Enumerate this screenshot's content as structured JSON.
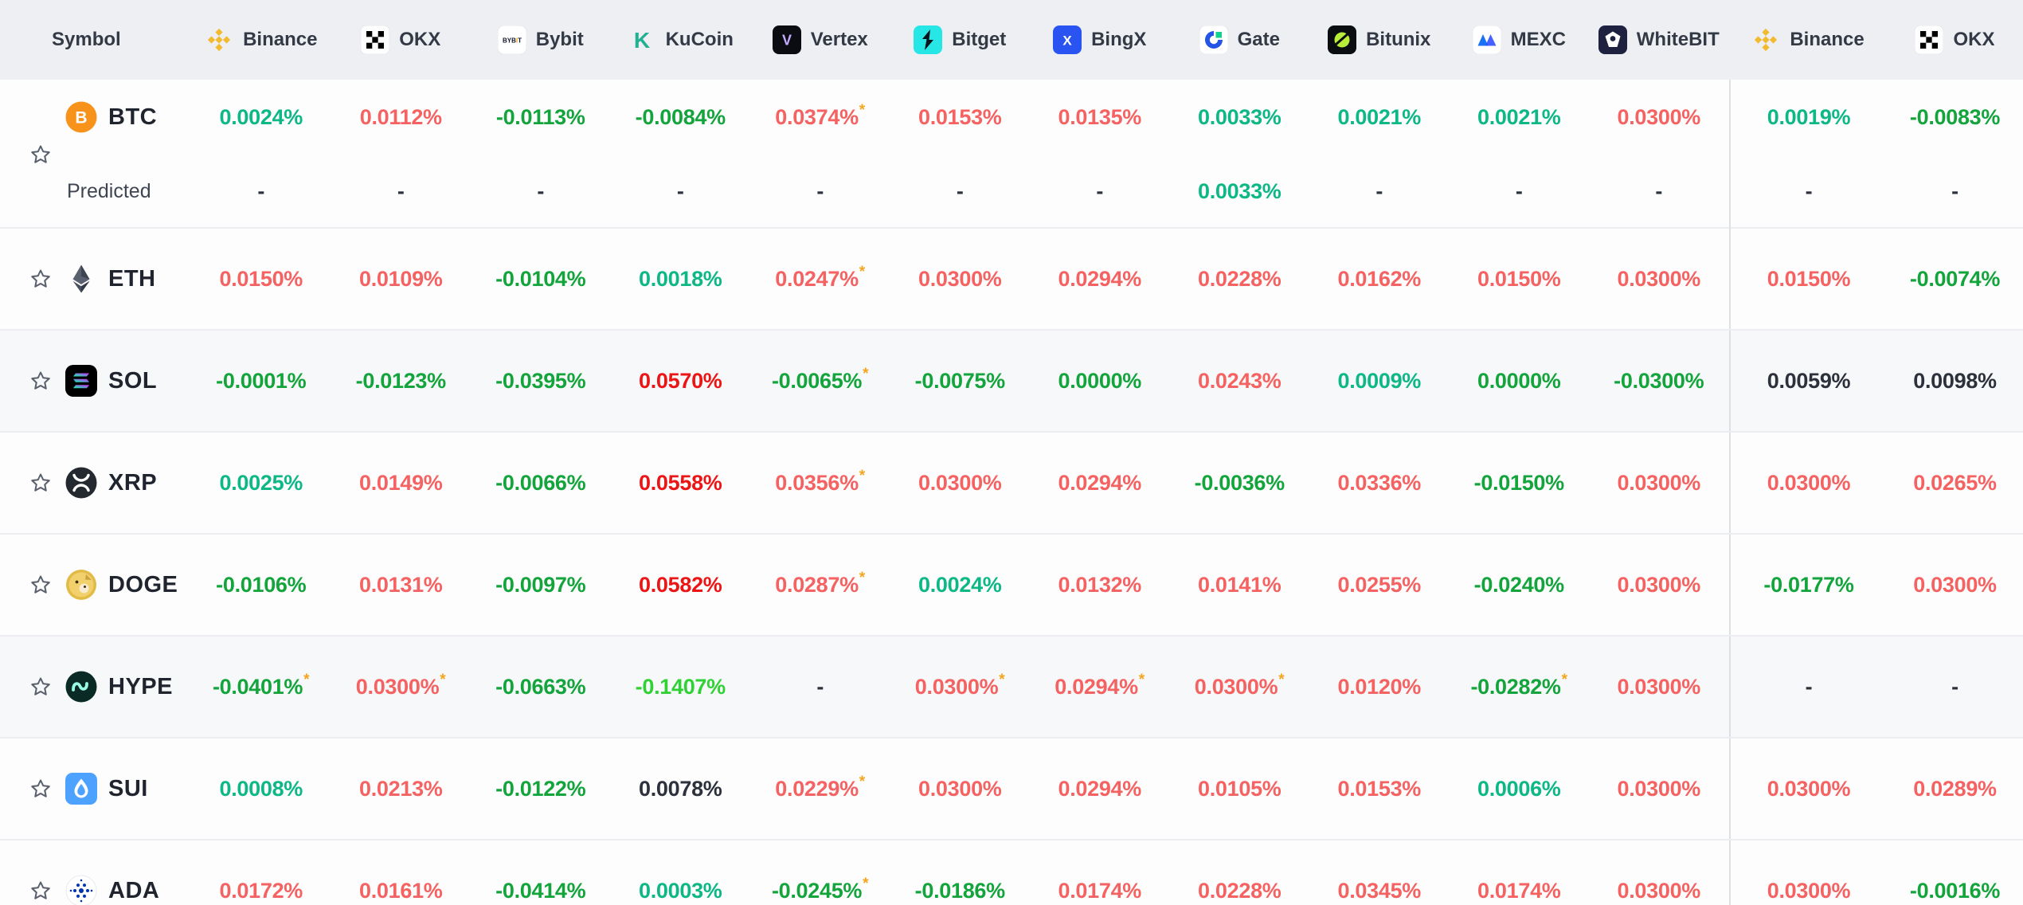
{
  "asterisk_char": "*",
  "palette": {
    "teal": "#0db886",
    "pink": "#f56262",
    "red": "#ec1515",
    "green": "#13a43c",
    "greenBright": "#2fd134",
    "dark": "#2c313c",
    "dash": "#2c313c"
  },
  "header": {
    "symbol_label": "Symbol",
    "exchanges": [
      {
        "label": "Binance",
        "icon": "binance-icon"
      },
      {
        "label": "OKX",
        "icon": "okx-icon"
      },
      {
        "label": "Bybit",
        "icon": "bybit-icon"
      },
      {
        "label": "KuCoin",
        "icon": "kucoin-icon"
      },
      {
        "label": "Vertex",
        "icon": "vertex-icon"
      },
      {
        "label": "Bitget",
        "icon": "bitget-icon"
      },
      {
        "label": "BingX",
        "icon": "bingx-icon"
      },
      {
        "label": "Gate",
        "icon": "gate-icon"
      },
      {
        "label": "Bitunix",
        "icon": "bitunix-icon"
      },
      {
        "label": "MEXC",
        "icon": "mexc-icon"
      },
      {
        "label": "WhiteBIT",
        "icon": "whitebit-icon"
      }
    ],
    "pinned": [
      {
        "label": "Binance",
        "icon": "binance-icon"
      },
      {
        "label": "OKX",
        "icon": "okx-icon"
      }
    ]
  },
  "rows": [
    {
      "symbol": "BTC",
      "icon": "btc-icon",
      "shaded": false,
      "values": [
        {
          "v": "0.0024%",
          "c": "teal"
        },
        {
          "v": "0.0112%",
          "c": "pink"
        },
        {
          "v": "-0.0113%",
          "c": "green"
        },
        {
          "v": "-0.0084%",
          "c": "green"
        },
        {
          "v": "0.0374%",
          "c": "pink",
          "a": true
        },
        {
          "v": "0.0153%",
          "c": "pink"
        },
        {
          "v": "0.0135%",
          "c": "pink"
        },
        {
          "v": "0.0033%",
          "c": "teal"
        },
        {
          "v": "0.0021%",
          "c": "teal"
        },
        {
          "v": "0.0021%",
          "c": "teal"
        },
        {
          "v": "0.0300%",
          "c": "pink"
        }
      ],
      "pinned": [
        {
          "v": "0.0019%",
          "c": "teal"
        },
        {
          "v": "-0.0083%",
          "c": "green"
        }
      ],
      "predicted": {
        "label": "Predicted",
        "values": [
          {
            "v": "-",
            "c": "dash"
          },
          {
            "v": "-",
            "c": "dash"
          },
          {
            "v": "-",
            "c": "dash"
          },
          {
            "v": "-",
            "c": "dash"
          },
          {
            "v": "-",
            "c": "dash"
          },
          {
            "v": "-",
            "c": "dash"
          },
          {
            "v": "-",
            "c": "dash"
          },
          {
            "v": "0.0033%",
            "c": "teal"
          },
          {
            "v": "-",
            "c": "dash"
          },
          {
            "v": "-",
            "c": "dash"
          },
          {
            "v": "-",
            "c": "dash"
          }
        ],
        "pinned": [
          {
            "v": "-",
            "c": "dash"
          },
          {
            "v": "-",
            "c": "dash"
          }
        ]
      }
    },
    {
      "symbol": "ETH",
      "icon": "eth-icon",
      "shaded": false,
      "values": [
        {
          "v": "0.0150%",
          "c": "pink"
        },
        {
          "v": "0.0109%",
          "c": "pink"
        },
        {
          "v": "-0.0104%",
          "c": "green"
        },
        {
          "v": "0.0018%",
          "c": "teal"
        },
        {
          "v": "0.0247%",
          "c": "pink",
          "a": true
        },
        {
          "v": "0.0300%",
          "c": "pink"
        },
        {
          "v": "0.0294%",
          "c": "pink"
        },
        {
          "v": "0.0228%",
          "c": "pink"
        },
        {
          "v": "0.0162%",
          "c": "pink"
        },
        {
          "v": "0.0150%",
          "c": "pink"
        },
        {
          "v": "0.0300%",
          "c": "pink"
        }
      ],
      "pinned": [
        {
          "v": "0.0150%",
          "c": "pink"
        },
        {
          "v": "-0.0074%",
          "c": "green"
        }
      ]
    },
    {
      "symbol": "SOL",
      "icon": "sol-icon",
      "shaded": true,
      "values": [
        {
          "v": "-0.0001%",
          "c": "green"
        },
        {
          "v": "-0.0123%",
          "c": "green"
        },
        {
          "v": "-0.0395%",
          "c": "green"
        },
        {
          "v": "0.0570%",
          "c": "red"
        },
        {
          "v": "-0.0065%",
          "c": "green",
          "a": true
        },
        {
          "v": "-0.0075%",
          "c": "green"
        },
        {
          "v": "0.0000%",
          "c": "green"
        },
        {
          "v": "0.0243%",
          "c": "pink"
        },
        {
          "v": "0.0009%",
          "c": "teal"
        },
        {
          "v": "0.0000%",
          "c": "green"
        },
        {
          "v": "-0.0300%",
          "c": "green"
        }
      ],
      "pinned": [
        {
          "v": "0.0059%",
          "c": "dark"
        },
        {
          "v": "0.0098%",
          "c": "dark"
        }
      ]
    },
    {
      "symbol": "XRP",
      "icon": "xrp-icon",
      "shaded": false,
      "values": [
        {
          "v": "0.0025%",
          "c": "teal"
        },
        {
          "v": "0.0149%",
          "c": "pink"
        },
        {
          "v": "-0.0066%",
          "c": "green"
        },
        {
          "v": "0.0558%",
          "c": "red"
        },
        {
          "v": "0.0356%",
          "c": "pink",
          "a": true
        },
        {
          "v": "0.0300%",
          "c": "pink"
        },
        {
          "v": "0.0294%",
          "c": "pink"
        },
        {
          "v": "-0.0036%",
          "c": "green"
        },
        {
          "v": "0.0336%",
          "c": "pink"
        },
        {
          "v": "-0.0150%",
          "c": "green"
        },
        {
          "v": "0.0300%",
          "c": "pink"
        }
      ],
      "pinned": [
        {
          "v": "0.0300%",
          "c": "pink"
        },
        {
          "v": "0.0265%",
          "c": "pink"
        }
      ]
    },
    {
      "symbol": "DOGE",
      "icon": "doge-icon",
      "shaded": false,
      "values": [
        {
          "v": "-0.0106%",
          "c": "green"
        },
        {
          "v": "0.0131%",
          "c": "pink"
        },
        {
          "v": "-0.0097%",
          "c": "green"
        },
        {
          "v": "0.0582%",
          "c": "red"
        },
        {
          "v": "0.0287%",
          "c": "pink",
          "a": true
        },
        {
          "v": "0.0024%",
          "c": "teal"
        },
        {
          "v": "0.0132%",
          "c": "pink"
        },
        {
          "v": "0.0141%",
          "c": "pink"
        },
        {
          "v": "0.0255%",
          "c": "pink"
        },
        {
          "v": "-0.0240%",
          "c": "green"
        },
        {
          "v": "0.0300%",
          "c": "pink"
        }
      ],
      "pinned": [
        {
          "v": "-0.0177%",
          "c": "green"
        },
        {
          "v": "0.0300%",
          "c": "pink"
        }
      ]
    },
    {
      "symbol": "HYPE",
      "icon": "hype-icon",
      "shaded": true,
      "values": [
        {
          "v": "-0.0401%",
          "c": "green",
          "a": true
        },
        {
          "v": "0.0300%",
          "c": "pink",
          "a": true
        },
        {
          "v": "-0.0663%",
          "c": "green"
        },
        {
          "v": "-0.1407%",
          "c": "greenBright"
        },
        {
          "v": "-",
          "c": "dash"
        },
        {
          "v": "0.0300%",
          "c": "pink",
          "a": true
        },
        {
          "v": "0.0294%",
          "c": "pink",
          "a": true
        },
        {
          "v": "0.0300%",
          "c": "pink",
          "a": true
        },
        {
          "v": "0.0120%",
          "c": "pink"
        },
        {
          "v": "-0.0282%",
          "c": "green",
          "a": true
        },
        {
          "v": "0.0300%",
          "c": "pink"
        }
      ],
      "pinned": [
        {
          "v": "-",
          "c": "dash"
        },
        {
          "v": "-",
          "c": "dash"
        }
      ]
    },
    {
      "symbol": "SUI",
      "icon": "sui-icon",
      "shaded": false,
      "values": [
        {
          "v": "0.0008%",
          "c": "teal"
        },
        {
          "v": "0.0213%",
          "c": "pink"
        },
        {
          "v": "-0.0122%",
          "c": "green"
        },
        {
          "v": "0.0078%",
          "c": "dark"
        },
        {
          "v": "0.0229%",
          "c": "pink",
          "a": true
        },
        {
          "v": "0.0300%",
          "c": "pink"
        },
        {
          "v": "0.0294%",
          "c": "pink"
        },
        {
          "v": "0.0105%",
          "c": "pink"
        },
        {
          "v": "0.0153%",
          "c": "pink"
        },
        {
          "v": "0.0006%",
          "c": "teal"
        },
        {
          "v": "0.0300%",
          "c": "pink"
        }
      ],
      "pinned": [
        {
          "v": "0.0300%",
          "c": "pink"
        },
        {
          "v": "0.0289%",
          "c": "pink"
        }
      ]
    },
    {
      "symbol": "ADA",
      "icon": "ada-icon",
      "shaded": false,
      "values": [
        {
          "v": "0.0172%",
          "c": "pink"
        },
        {
          "v": "0.0161%",
          "c": "pink"
        },
        {
          "v": "-0.0414%",
          "c": "green"
        },
        {
          "v": "0.0003%",
          "c": "teal"
        },
        {
          "v": "-0.0245%",
          "c": "green",
          "a": true
        },
        {
          "v": "-0.0186%",
          "c": "green"
        },
        {
          "v": "0.0174%",
          "c": "pink"
        },
        {
          "v": "0.0228%",
          "c": "pink"
        },
        {
          "v": "0.0345%",
          "c": "pink"
        },
        {
          "v": "0.0174%",
          "c": "pink"
        },
        {
          "v": "0.0300%",
          "c": "pink"
        }
      ],
      "pinned": [
        {
          "v": "0.0300%",
          "c": "pink"
        },
        {
          "v": "-0.0016%",
          "c": "green"
        }
      ]
    }
  ]
}
